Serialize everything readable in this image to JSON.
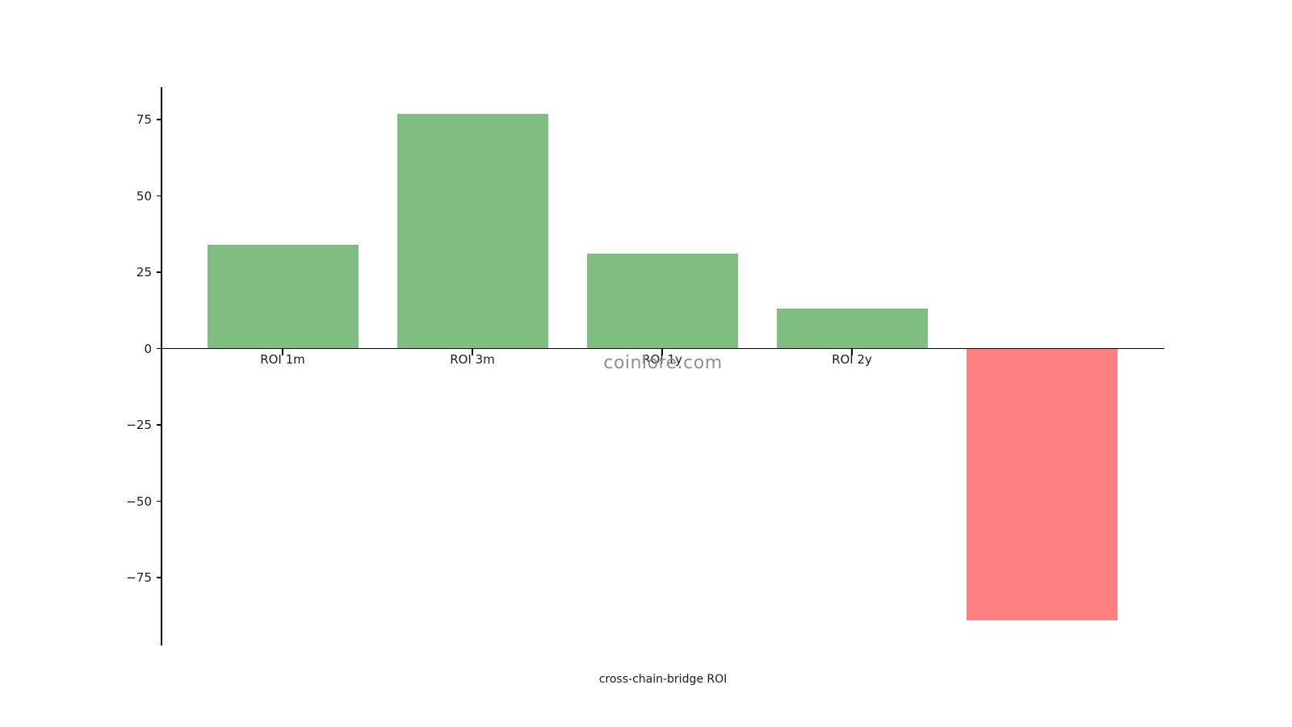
{
  "chart_data": {
    "type": "bar",
    "title": "cross-chain-bridge ROI",
    "categories": [
      "ROI 1m",
      "ROI 3m",
      "ROI 1y",
      "ROI 2y",
      ""
    ],
    "values": [
      34,
      77,
      31,
      13,
      -89
    ],
    "yticks": [
      75,
      50,
      25,
      0,
      -25,
      -50,
      -75
    ],
    "ylim": [
      -97.2,
      85.6
    ],
    "xlabel": "",
    "ylabel": "",
    "grid": false,
    "legend_position": "none",
    "colors": {
      "positive_bar": "#7fbe80",
      "negative_bar": "#ff8080",
      "axis": "#000000",
      "tick_text": "#1a1a1a",
      "watermark": "#919191"
    }
  },
  "watermark": {
    "text": "coinlore.com"
  }
}
